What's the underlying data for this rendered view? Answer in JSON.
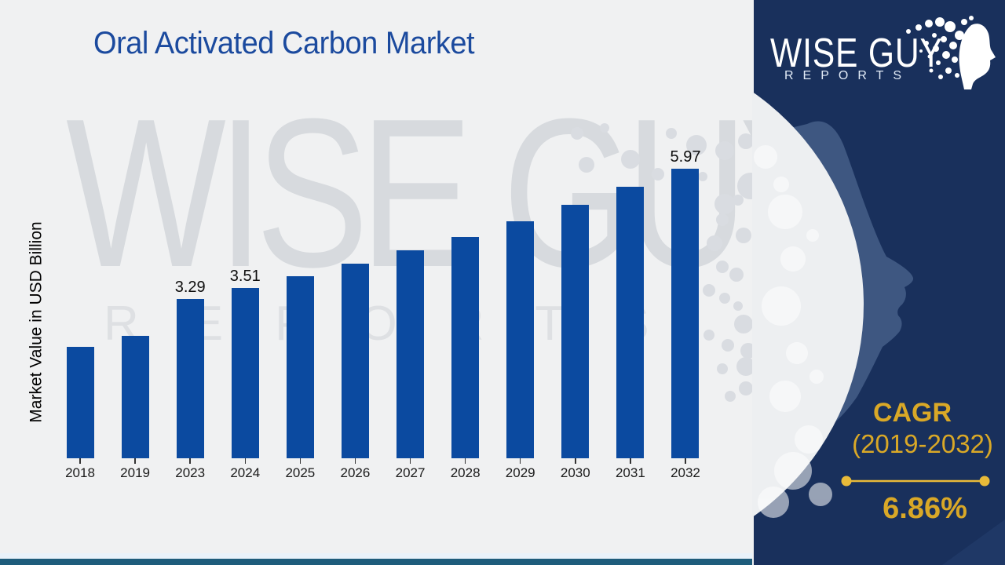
{
  "title": "Oral Activated Carbon Market",
  "y_axis_label": "Market Value in USD Billion",
  "watermark": {
    "line1": "WISE GUY",
    "line2": "REPORTS"
  },
  "logo": {
    "line1": "WISE GUY",
    "line2": "REPORTS"
  },
  "cagr": {
    "label": "CAGR",
    "range": "(2019-2032)",
    "value": "6.86%"
  },
  "icons": {
    "logo_face": "dotted-face-profile-icon",
    "panel_face": "face-profile-watermark",
    "cagr_underline": "gold-line-with-end-dots"
  },
  "colors": {
    "bg": "#f0f1f2",
    "bar": "#0b4aa0",
    "title": "#1b4a9e",
    "panel": "#19305c",
    "face": "#3e5781",
    "circle": "#edeff1",
    "gold": "#d9a827",
    "gold-line": "#e8ba39",
    "teal": "#1e5c7b",
    "pale": "#e9f2fa",
    "wm": "#d9dce1"
  },
  "chart_data": {
    "type": "bar",
    "title": "Oral Activated Carbon Market",
    "xlabel": "",
    "ylabel": "Market Value in USD Billion",
    "ylim": [
      0,
      6.5
    ],
    "grid": false,
    "legend": null,
    "bar_color": "#0b4aa0",
    "categories": [
      "2018",
      "2019",
      "2023",
      "2024",
      "2025",
      "2026",
      "2027",
      "2028",
      "2029",
      "2030",
      "2031",
      "2032"
    ],
    "values": [
      2.29,
      2.52,
      3.29,
      3.51,
      3.76,
      4.01,
      4.28,
      4.57,
      4.89,
      5.22,
      5.59,
      5.97
    ],
    "labeled_points": [
      "2023",
      "2024",
      "2032"
    ],
    "points": [
      {
        "year": "2018",
        "value": 2.29
      },
      {
        "year": "2019",
        "value": 2.52
      },
      {
        "year": "2023",
        "value": 3.29,
        "label": "3.29"
      },
      {
        "year": "2024",
        "value": 3.51,
        "label": "3.51"
      },
      {
        "year": "2025",
        "value": 3.76
      },
      {
        "year": "2026",
        "value": 4.01
      },
      {
        "year": "2027",
        "value": 4.28
      },
      {
        "year": "2028",
        "value": 4.57
      },
      {
        "year": "2029",
        "value": 4.89
      },
      {
        "year": "2030",
        "value": 5.22
      },
      {
        "year": "2031",
        "value": 5.59
      },
      {
        "year": "2032",
        "value": 5.97,
        "label": "5.97"
      }
    ]
  }
}
